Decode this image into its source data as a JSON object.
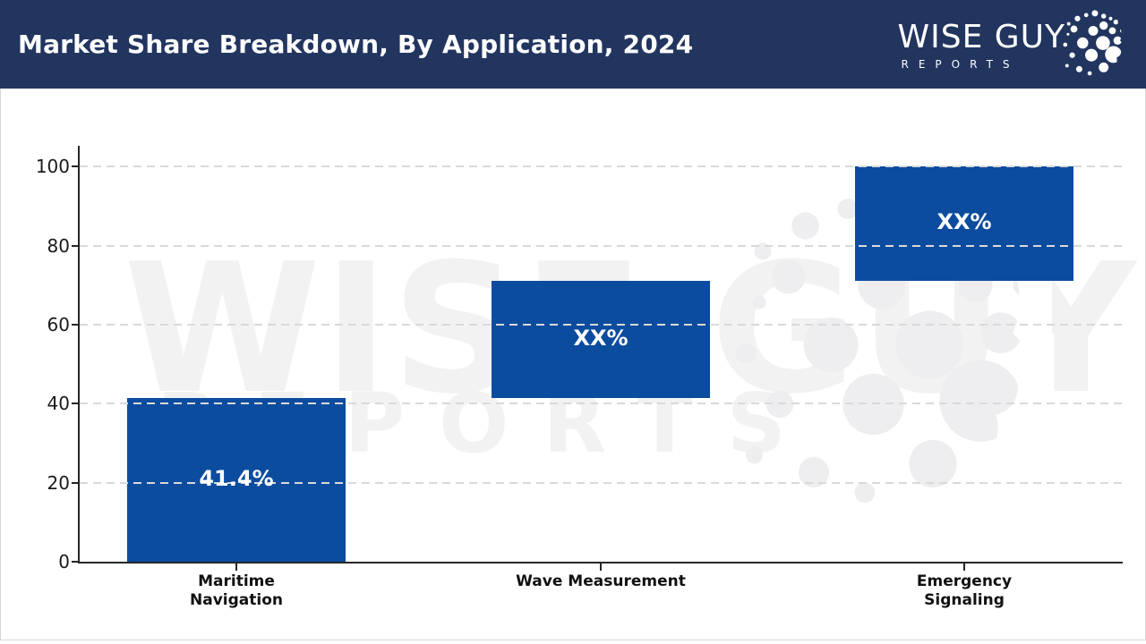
{
  "header": {
    "title": "Market Share Breakdown, By Application, 2024",
    "logo": {
      "line1": "WISE GUY",
      "line2": "REPORTS"
    }
  },
  "watermark": {
    "line1": "WISE GUY",
    "line2": "REPORTS"
  },
  "chart_data": {
    "type": "bar",
    "subtype": "waterfall",
    "title": "Market Share Breakdown, By Application, 2024",
    "categories": [
      "Maritime Navigation",
      "Wave Measurement",
      "Emergency Signaling"
    ],
    "xtick_lines": [
      [
        "Maritime",
        "Navigation"
      ],
      [
        "Wave Measurement"
      ],
      [
        "Emergency",
        "Signaling"
      ]
    ],
    "segments": [
      {
        "category": "Maritime Navigation",
        "start": 0,
        "end": 41.4,
        "label": "41.4%"
      },
      {
        "category": "Wave Measurement",
        "start": 41.4,
        "end": 71,
        "label": "XX%"
      },
      {
        "category": "Emergency Signaling",
        "start": 71,
        "end": 100,
        "label": "XX%"
      }
    ],
    "yticks": [
      0,
      20,
      40,
      60,
      80,
      100
    ],
    "ylim": [
      0,
      105.3
    ],
    "xlabel": "",
    "ylabel": "",
    "legend": "none",
    "grid": {
      "horizontal_dashed": true,
      "color": "#d9d9d9"
    },
    "bar_color": "#0b4c9f",
    "bar_label_color": "#ffffff",
    "header_color": "#22355f"
  }
}
